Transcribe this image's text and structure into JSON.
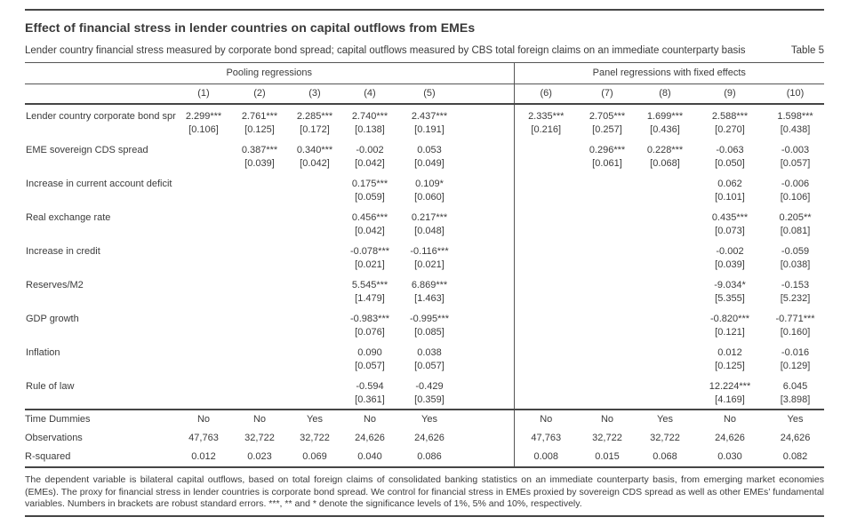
{
  "colors": {
    "text": "#3b3b3b",
    "rule": "#454545",
    "background": "#ffffff"
  },
  "header": {
    "title": "Effect of financial stress in lender countries on capital outflows from EMEs",
    "subtitle": "Lender country financial stress measured by corporate bond spread; capital outflows measured by CBS total foreign claims on an immediate counterparty basis",
    "table_label": "Table 5"
  },
  "table": {
    "group_headers": [
      "Pooling regressions",
      "Panel regressions with fixed effects"
    ],
    "column_headers": [
      "(1)",
      "(2)",
      "(3)",
      "(4)",
      "(5)",
      "(6)",
      "(7)",
      "(8)",
      "(9)",
      "(10)"
    ],
    "rows": [
      {
        "label": "Lender country corporate bond spread",
        "coef": [
          "2.299***",
          "2.761***",
          "2.285***",
          "2.740***",
          "2.437***",
          "2.335***",
          "2.705***",
          "1.699***",
          "2.588***",
          "1.598***"
        ],
        "se": [
          "[0.106]",
          "[0.125]",
          "[0.172]",
          "[0.138]",
          "[0.191]",
          "[0.216]",
          "[0.257]",
          "[0.436]",
          "[0.270]",
          "[0.438]"
        ]
      },
      {
        "label": "EME sovereign CDS spread",
        "coef": [
          "",
          "0.387***",
          "0.340***",
          "-0.002",
          "0.053",
          "",
          "0.296***",
          "0.228***",
          "-0.063",
          "-0.003"
        ],
        "se": [
          "",
          "[0.039]",
          "[0.042]",
          "[0.042]",
          "[0.049]",
          "",
          "[0.061]",
          "[0.068]",
          "[0.050]",
          "[0.057]"
        ]
      },
      {
        "label": "Increase in current account deficit",
        "coef": [
          "",
          "",
          "",
          "0.175***",
          "0.109*",
          "",
          "",
          "",
          "0.062",
          "-0.006"
        ],
        "se": [
          "",
          "",
          "",
          "[0.059]",
          "[0.060]",
          "",
          "",
          "",
          "[0.101]",
          "[0.106]"
        ]
      },
      {
        "label": "Real exchange rate",
        "coef": [
          "",
          "",
          "",
          "0.456***",
          "0.217***",
          "",
          "",
          "",
          "0.435***",
          "0.205**"
        ],
        "se": [
          "",
          "",
          "",
          "[0.042]",
          "[0.048]",
          "",
          "",
          "",
          "[0.073]",
          "[0.081]"
        ]
      },
      {
        "label": "Increase in credit",
        "coef": [
          "",
          "",
          "",
          "-0.078***",
          "-0.116***",
          "",
          "",
          "",
          "-0.002",
          "-0.059"
        ],
        "se": [
          "",
          "",
          "",
          "[0.021]",
          "[0.021]",
          "",
          "",
          "",
          "[0.039]",
          "[0.038]"
        ]
      },
      {
        "label": "Reserves/M2",
        "coef": [
          "",
          "",
          "",
          "5.545***",
          "6.869***",
          "",
          "",
          "",
          "-9.034*",
          "-0.153"
        ],
        "se": [
          "",
          "",
          "",
          "[1.479]",
          "[1.463]",
          "",
          "",
          "",
          "[5.355]",
          "[5.232]"
        ]
      },
      {
        "label": "GDP growth",
        "coef": [
          "",
          "",
          "",
          "-0.983***",
          "-0.995***",
          "",
          "",
          "",
          "-0.820***",
          "-0.771***"
        ],
        "se": [
          "",
          "",
          "",
          "[0.076]",
          "[0.085]",
          "",
          "",
          "",
          "[0.121]",
          "[0.160]"
        ]
      },
      {
        "label": "Inflation",
        "coef": [
          "",
          "",
          "",
          "0.090",
          "0.038",
          "",
          "",
          "",
          "0.012",
          "-0.016"
        ],
        "se": [
          "",
          "",
          "",
          "[0.057]",
          "[0.057]",
          "",
          "",
          "",
          "[0.125]",
          "[0.129]"
        ]
      },
      {
        "label": "Rule of law",
        "coef": [
          "",
          "",
          "",
          "-0.594",
          "-0.429",
          "",
          "",
          "",
          "12.224***",
          "6.045"
        ],
        "se": [
          "",
          "",
          "",
          "[0.361]",
          "[0.359]",
          "",
          "",
          "",
          "[4.169]",
          "[3.898]"
        ]
      }
    ],
    "summary_rows": [
      {
        "label": "Time Dummies",
        "values": [
          "No",
          "No",
          "Yes",
          "No",
          "Yes",
          "No",
          "No",
          "Yes",
          "No",
          "Yes"
        ]
      },
      {
        "label": "Observations",
        "values": [
          "47,763",
          "32,722",
          "32,722",
          "24,626",
          "24,626",
          "47,763",
          "32,722",
          "32,722",
          "24,626",
          "24,626"
        ]
      },
      {
        "label": "R-squared",
        "values": [
          "0.012",
          "0.023",
          "0.069",
          "0.040",
          "0.086",
          "0.008",
          "0.015",
          "0.068",
          "0.030",
          "0.082"
        ]
      }
    ]
  },
  "footnote": "The dependent variable is bilateral capital outflows, based on total foreign claims of consolidated banking statistics on an immediate counterparty basis, from emerging market economies (EMEs). The proxy for financial stress in lender countries is corporate bond spread. We control for financial stress in EMEs proxied by sovereign CDS spread as well as other EMEs’ fundamental variables. Numbers in brackets are robust standard errors. ***, ** and * denote the significance levels of 1%, 5% and 10%, respectively."
}
